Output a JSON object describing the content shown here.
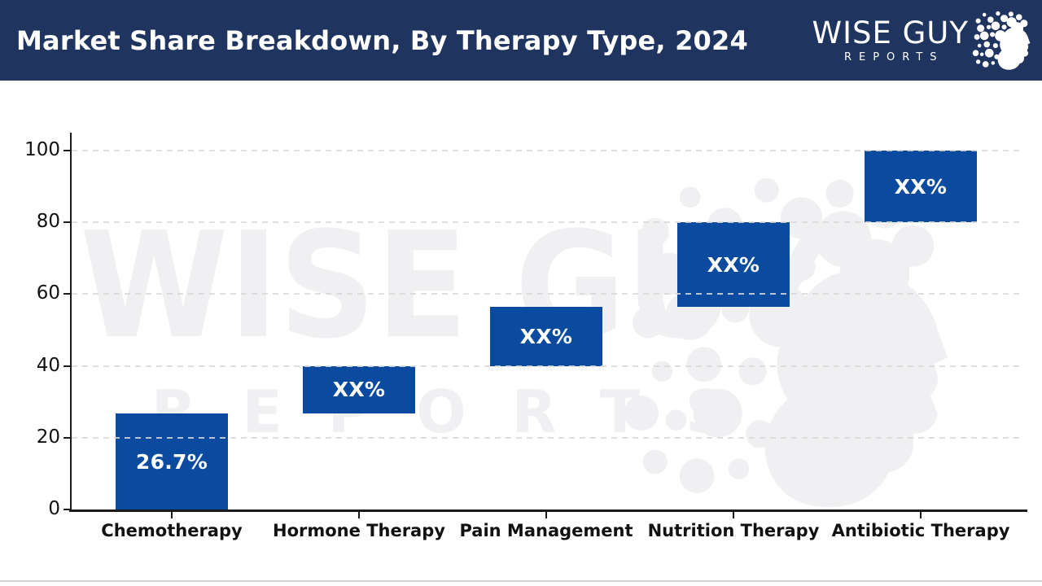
{
  "header": {
    "title": "Market Share Breakdown, By Therapy Type, 2024",
    "bg_color": "#1f3560",
    "logo": {
      "line1": "WISE GUY",
      "line2": "REPORTS"
    }
  },
  "watermark": {
    "line1": "WISE GUY",
    "line2": "REPORTS"
  },
  "chart_data": {
    "type": "bar",
    "subtype": "waterfall",
    "title": "Market Share Breakdown, By Therapy Type, 2024",
    "categories": [
      "Chemotherapy",
      "Hormone Therapy",
      "Pain Management",
      "Nutrition Therapy",
      "Antibiotic Therapy"
    ],
    "bars": [
      {
        "category": "Chemotherapy",
        "start": 0,
        "end": 26.7,
        "label": "26.7%"
      },
      {
        "category": "Hormone Therapy",
        "start": 26.7,
        "end": 40,
        "label": "XX%"
      },
      {
        "category": "Pain Management",
        "start": 40,
        "end": 56.5,
        "label": "XX%"
      },
      {
        "category": "Nutrition Therapy",
        "start": 56.5,
        "end": 80,
        "label": "XX%"
      },
      {
        "category": "Antibiotic Therapy",
        "start": 80,
        "end": 100,
        "label": "XX%"
      }
    ],
    "xlabel": "",
    "ylabel": "",
    "ylim": [
      0,
      105
    ],
    "yticks": [
      0,
      20,
      40,
      60,
      80,
      100
    ],
    "grid": "horizontal-dashed",
    "legend": false,
    "bar_color": "#0b4b9f",
    "grid_color": "#d9d9d9"
  }
}
